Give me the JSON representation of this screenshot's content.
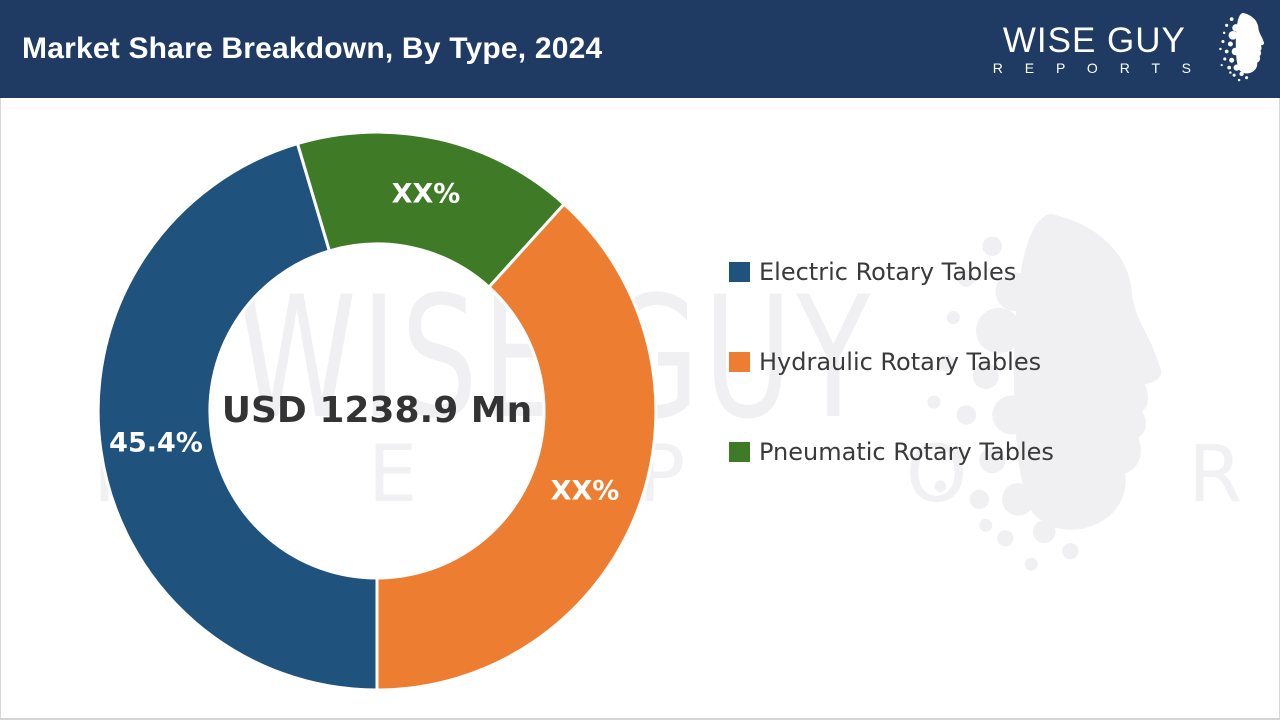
{
  "header": {
    "title": "Market Share Breakdown, By Type, 2024",
    "logo": {
      "name": "WISE GUY",
      "sub": "R E P O R T S"
    }
  },
  "watermark": {
    "line1": "WISE GUY",
    "line2": "R E P O R T S"
  },
  "chart_data": {
    "type": "pie",
    "subtype": "donut",
    "title": "Market Share Breakdown, By Type, 2024",
    "center_label": "USD 1238.9 Mn",
    "legend_position": "right",
    "start_angle_deg": 180,
    "sweep": "clockwise",
    "draw_order": [
      0,
      2,
      1
    ],
    "slices": [
      {
        "name": "Electric Rotary Tables",
        "label": "45.4%",
        "value": 45.4,
        "color": "#1F527C"
      },
      {
        "name": "Hydraulic Rotary Tables",
        "label": "XX%",
        "value": 38.3,
        "color": "#ED7D31",
        "value_note": "angle-estimated; on-chart label is XX%"
      },
      {
        "name": "Pneumatic Rotary Tables",
        "label": "XX%",
        "value": 16.3,
        "color": "#3F7A26",
        "value_note": "angle-estimated; on-chart label is XX%"
      }
    ]
  },
  "colors": {
    "header_bg": "#1F3A63",
    "canvas": "#FFFFFF",
    "legend_text": "#3A3A3A",
    "center_text": "#333333",
    "slice_label": "#FFFFFF",
    "watermark": "#F0F0F3"
  }
}
